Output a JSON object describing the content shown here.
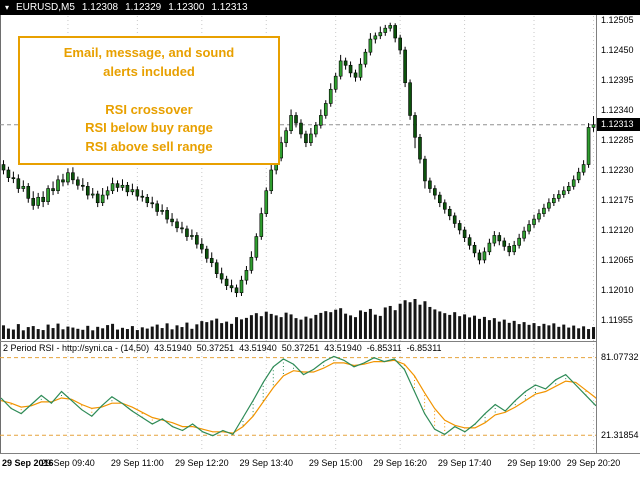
{
  "titlebar": {
    "symbol": "EURUSD,M5",
    "open": "1.12308",
    "high": "1.12329",
    "low": "1.12300",
    "close": "1.12313"
  },
  "alert_box": {
    "lines": [
      "Email, message, and sound",
      "alerts included",
      "",
      "RSI crossover",
      "RSI below buy range",
      "RSI above sell range"
    ],
    "border_color": "#e8a000",
    "text_color": "#e8a000"
  },
  "price_axis": {
    "labels": [
      "1.12505",
      "1.12450",
      "1.12395",
      "1.12340",
      "1.12285",
      "1.12230",
      "1.12175",
      "1.12120",
      "1.12065",
      "1.12010",
      "1.11955"
    ],
    "current": {
      "value": "1.12313",
      "price": 1.12313
    }
  },
  "rsi_axis": {
    "labels": [
      {
        "value": "81.07732",
        "level": 81.07732
      },
      {
        "value": "21.31854",
        "level": 21.31854
      }
    ]
  },
  "time_axis": {
    "labels": [
      "29 Sep 2016",
      "29 Sep 09:40",
      "29 Sep 11:00",
      "29 Sep 12:20",
      "29 Sep 13:40",
      "29 Sep 15:00",
      "29 Sep 16:20",
      "29 Sep 17:40",
      "29 Sep 19:00",
      "29 Sep 20:20"
    ]
  },
  "rsi_header": {
    "name": "2 Period RSI - http://syni.ca - (14,50)",
    "values": [
      "43.51940",
      "50.37251",
      "43.51940",
      "50.37251",
      "43.51940",
      "-6.85311",
      "-6.85311"
    ]
  },
  "chart_data": {
    "type": "candlestick",
    "title": "EURUSD,M5",
    "symbol": "EURUSD",
    "timeframe": "M5",
    "price_range": [
      1.11955,
      1.12505
    ],
    "bid_line": 1.12313,
    "tick_indices": [
      13,
      27,
      40,
      53,
      67,
      80,
      93,
      107,
      119
    ],
    "colors": {
      "up": "#2f9e2f",
      "down": "#0c520c",
      "wick": "#000000",
      "volume": "#151515",
      "rsi_green": "#2e8b57",
      "rsi_orange": "#f29400",
      "rsi_level": "#e6a23c",
      "grid": "#c9c9c9",
      "bid": "#909090",
      "separator": "#808080"
    },
    "candles": [
      [
        1.1224,
        1.12248,
        1.12222,
        1.1223
      ],
      [
        1.1223,
        1.12236,
        1.12208,
        1.12216
      ],
      [
        1.12216,
        1.12227,
        1.12206,
        1.12214
      ],
      [
        1.12214,
        1.12222,
        1.12188,
        1.12196
      ],
      [
        1.12196,
        1.12211,
        1.1219,
        1.122
      ],
      [
        1.122,
        1.12206,
        1.1217,
        1.12178
      ],
      [
        1.12178,
        1.12191,
        1.12157,
        1.12165
      ],
      [
        1.12165,
        1.12188,
        1.12159,
        1.1218
      ],
      [
        1.1218,
        1.12191,
        1.12162,
        1.12172
      ],
      [
        1.12172,
        1.12202,
        1.12166,
        1.12196
      ],
      [
        1.12196,
        1.12209,
        1.12184,
        1.12192
      ],
      [
        1.12192,
        1.1222,
        1.12186,
        1.12212
      ],
      [
        1.12212,
        1.12223,
        1.122,
        1.12208
      ],
      [
        1.12208,
        1.12233,
        1.12202,
        1.12225
      ],
      [
        1.12225,
        1.12235,
        1.12204,
        1.12212
      ],
      [
        1.12212,
        1.12218,
        1.12194,
        1.12202
      ],
      [
        1.12202,
        1.12215,
        1.12192,
        1.122
      ],
      [
        1.122,
        1.12208,
        1.12176,
        1.12184
      ],
      [
        1.12184,
        1.12197,
        1.12178,
        1.12186
      ],
      [
        1.12186,
        1.12192,
        1.12162,
        1.1217
      ],
      [
        1.1217,
        1.12197,
        1.12164,
        1.12184
      ],
      [
        1.12184,
        1.122,
        1.12176,
        1.12192
      ],
      [
        1.12192,
        1.12216,
        1.12186,
        1.12205
      ],
      [
        1.12205,
        1.12211,
        1.1219,
        1.12198
      ],
      [
        1.12198,
        1.12213,
        1.12192,
        1.12202
      ],
      [
        1.12202,
        1.12208,
        1.12182,
        1.1219
      ],
      [
        1.1219,
        1.12205,
        1.12184,
        1.12194
      ],
      [
        1.12194,
        1.122,
        1.12174,
        1.12182
      ],
      [
        1.12182,
        1.12193,
        1.12172,
        1.1218
      ],
      [
        1.1218,
        1.12186,
        1.12162,
        1.1217
      ],
      [
        1.1217,
        1.12181,
        1.1216,
        1.12168
      ],
      [
        1.12168,
        1.12174,
        1.12146,
        1.12154
      ],
      [
        1.12154,
        1.12167,
        1.12148,
        1.12156
      ],
      [
        1.12156,
        1.12162,
        1.12132,
        1.1214
      ],
      [
        1.1214,
        1.12151,
        1.12127,
        1.12135
      ],
      [
        1.12135,
        1.12141,
        1.12116,
        1.12124
      ],
      [
        1.12124,
        1.12135,
        1.12114,
        1.12122
      ],
      [
        1.12122,
        1.12128,
        1.121,
        1.12108
      ],
      [
        1.12108,
        1.12121,
        1.12102,
        1.1211
      ],
      [
        1.1211,
        1.12116,
        1.12086,
        1.12094
      ],
      [
        1.12094,
        1.12105,
        1.12077,
        1.12085
      ],
      [
        1.12085,
        1.12091,
        1.1206,
        1.12068
      ],
      [
        1.12068,
        1.12079,
        1.12052,
        1.1206
      ],
      [
        1.1206,
        1.12066,
        1.12032,
        1.1204
      ],
      [
        1.1204,
        1.12051,
        1.12022,
        1.1203
      ],
      [
        1.1203,
        1.12036,
        1.1201,
        1.12018
      ],
      [
        1.12018,
        1.12029,
        1.12006,
        1.12014
      ],
      [
        1.12014,
        1.1202,
        1.11997,
        1.12005
      ],
      [
        1.12005,
        1.12036,
        1.11999,
        1.12028
      ],
      [
        1.12028,
        1.12054,
        1.1202,
        1.12046
      ],
      [
        1.12046,
        1.12081,
        1.1204,
        1.1207
      ],
      [
        1.1207,
        1.12114,
        1.12064,
        1.12108
      ],
      [
        1.12108,
        1.12161,
        1.12102,
        1.1215
      ],
      [
        1.1215,
        1.12198,
        1.12144,
        1.12192
      ],
      [
        1.12192,
        1.12241,
        1.12186,
        1.1223
      ],
      [
        1.1223,
        1.12258,
        1.12222,
        1.12252
      ],
      [
        1.12252,
        1.12291,
        1.12246,
        1.1228
      ],
      [
        1.1228,
        1.12308,
        1.12272,
        1.12302
      ],
      [
        1.12302,
        1.12341,
        1.12296,
        1.1233
      ],
      [
        1.1233,
        1.12336,
        1.12308,
        1.12316
      ],
      [
        1.12316,
        1.12323,
        1.12288,
        1.12296
      ],
      [
        1.12296,
        1.12302,
        1.12272,
        1.1228
      ],
      [
        1.1228,
        1.12307,
        1.12274,
        1.12296
      ],
      [
        1.12296,
        1.12318,
        1.1229,
        1.12312
      ],
      [
        1.12312,
        1.12341,
        1.12306,
        1.1233
      ],
      [
        1.1233,
        1.12358,
        1.12324,
        1.12352
      ],
      [
        1.12352,
        1.12389,
        1.12346,
        1.12378
      ],
      [
        1.12378,
        1.12408,
        1.12372,
        1.12402
      ],
      [
        1.12402,
        1.12441,
        1.12396,
        1.1243
      ],
      [
        1.1243,
        1.12436,
        1.12414,
        1.12422
      ],
      [
        1.12422,
        1.12429,
        1.124,
        1.12408
      ],
      [
        1.12408,
        1.12414,
        1.12392,
        1.124
      ],
      [
        1.124,
        1.12435,
        1.12394,
        1.12424
      ],
      [
        1.12424,
        1.12452,
        1.12418,
        1.12446
      ],
      [
        1.12446,
        1.12481,
        1.1244,
        1.1247
      ],
      [
        1.1247,
        1.12482,
        1.12462,
        1.12476
      ],
      [
        1.12476,
        1.12493,
        1.1247,
        1.12482
      ],
      [
        1.12482,
        1.12496,
        1.12476,
        1.1249
      ],
      [
        1.1249,
        1.125,
        1.12484,
        1.12495
      ],
      [
        1.12495,
        1.12499,
        1.12464,
        1.12472
      ],
      [
        1.12472,
        1.12478,
        1.12442,
        1.1245
      ],
      [
        1.1245,
        1.12456,
        1.12382,
        1.1239
      ],
      [
        1.1239,
        1.12396,
        1.12322,
        1.1233
      ],
      [
        1.1233,
        1.12336,
        1.1227,
        1.1229
      ],
      [
        1.1229,
        1.12296,
        1.12242,
        1.1225
      ],
      [
        1.1225,
        1.12256,
        1.12196,
        1.1221
      ],
      [
        1.1221,
        1.12216,
        1.12188,
        1.12196
      ],
      [
        1.12196,
        1.12202,
        1.12176,
        1.12184
      ],
      [
        1.12184,
        1.1219,
        1.12162,
        1.1217
      ],
      [
        1.1217,
        1.12176,
        1.1215,
        1.12158
      ],
      [
        1.12158,
        1.12164,
        1.12138,
        1.12146
      ],
      [
        1.12146,
        1.12152,
        1.12124,
        1.12132
      ],
      [
        1.12132,
        1.12138,
        1.12112,
        1.1212
      ],
      [
        1.1212,
        1.12126,
        1.12098,
        1.12106
      ],
      [
        1.12106,
        1.12112,
        1.12084,
        1.12092
      ],
      [
        1.12092,
        1.12098,
        1.1207,
        1.12078
      ],
      [
        1.12078,
        1.12084,
        1.12057,
        1.12065
      ],
      [
        1.12065,
        1.12088,
        1.12059,
        1.1208
      ],
      [
        1.1208,
        1.12104,
        1.12074,
        1.12096
      ],
      [
        1.12096,
        1.12118,
        1.1209,
        1.1211
      ],
      [
        1.1211,
        1.12116,
        1.12092,
        1.121
      ],
      [
        1.121,
        1.12106,
        1.12082,
        1.1209
      ],
      [
        1.1209,
        1.12096,
        1.12072,
        1.1208
      ],
      [
        1.1208,
        1.121,
        1.12074,
        1.12092
      ],
      [
        1.12092,
        1.12113,
        1.12086,
        1.12105
      ],
      [
        1.12105,
        1.12126,
        1.12099,
        1.12118
      ],
      [
        1.12118,
        1.12138,
        1.12112,
        1.1213
      ],
      [
        1.1213,
        1.12148,
        1.12124,
        1.1214
      ],
      [
        1.1214,
        1.12158,
        1.12134,
        1.1215
      ],
      [
        1.1215,
        1.12168,
        1.12144,
        1.1216
      ],
      [
        1.1216,
        1.12178,
        1.12154,
        1.1217
      ],
      [
        1.1217,
        1.12186,
        1.12164,
        1.12178
      ],
      [
        1.12178,
        1.12193,
        1.12172,
        1.12185
      ],
      [
        1.12185,
        1.122,
        1.12179,
        1.12192
      ],
      [
        1.12192,
        1.12208,
        1.12186,
        1.122
      ],
      [
        1.122,
        1.1222,
        1.12194,
        1.12212
      ],
      [
        1.12212,
        1.12234,
        1.12206,
        1.12226
      ],
      [
        1.12226,
        1.12248,
        1.1222,
        1.1224
      ],
      [
        1.1224,
        1.12316,
        1.12234,
        1.12308
      ],
      [
        1.12308,
        1.12329,
        1.123,
        1.12313
      ]
    ],
    "volumes": [
      55,
      42,
      38,
      60,
      35,
      48,
      52,
      40,
      36,
      58,
      44,
      62,
      39,
      50,
      46,
      41,
      37,
      53,
      35,
      49,
      43,
      56,
      61,
      38,
      45,
      40,
      52,
      36,
      47,
      42,
      50,
      58,
      44,
      63,
      39,
      55,
      48,
      66,
      41,
      59,
      72,
      68,
      75,
      82,
      64,
      70,
      61,
      88,
      79,
      85,
      96,
      104,
      92,
      110,
      101,
      95,
      88,
      106,
      99,
      84,
      78,
      90,
      83,
      97,
      105,
      112,
      108,
      118,
      124,
      102,
      95,
      88,
      115,
      109,
      121,
      98,
      93,
      127,
      133,
      116,
      142,
      156,
      148,
      161,
      138,
      152,
      129,
      119,
      111,
      104,
      97,
      108,
      92,
      99,
      87,
      94,
      81,
      89,
      76,
      84,
      70,
      78,
      65,
      73,
      60,
      68,
      57,
      64,
      52,
      61,
      55,
      63,
      49,
      58,
      46,
      54,
      43,
      51,
      40,
      48
    ],
    "rsi": {
      "name": "2 Period RSI",
      "params": "(14,50)",
      "range": [
        10,
        90
      ],
      "upper_level": 81.07732,
      "lower_level": 21.31854,
      "green": [
        50,
        42,
        38,
        45,
        52,
        46,
        55,
        48,
        41,
        36,
        44,
        51,
        46,
        40,
        35,
        30,
        34,
        28,
        25,
        30,
        24,
        21,
        25,
        22,
        35,
        48,
        62,
        74,
        80,
        76,
        68,
        72,
        78,
        82,
        79,
        74,
        77,
        81,
        78,
        80,
        72,
        55,
        38,
        26,
        22,
        28,
        24,
        30,
        38,
        45,
        40,
        48,
        55,
        60,
        57,
        64,
        68,
        60,
        52,
        44
      ],
      "orange": [
        48,
        46,
        43,
        44,
        47,
        47,
        50,
        49,
        45,
        42,
        43,
        46,
        46,
        43,
        39,
        35,
        33,
        31,
        28,
        28,
        26,
        24,
        24,
        23,
        28,
        36,
        47,
        58,
        67,
        71,
        70,
        70,
        73,
        77,
        77,
        75,
        76,
        78,
        78,
        79,
        76,
        67,
        54,
        42,
        33,
        29,
        27,
        27,
        31,
        37,
        39,
        43,
        48,
        53,
        55,
        59,
        63,
        62,
        56,
        50
      ]
    }
  }
}
